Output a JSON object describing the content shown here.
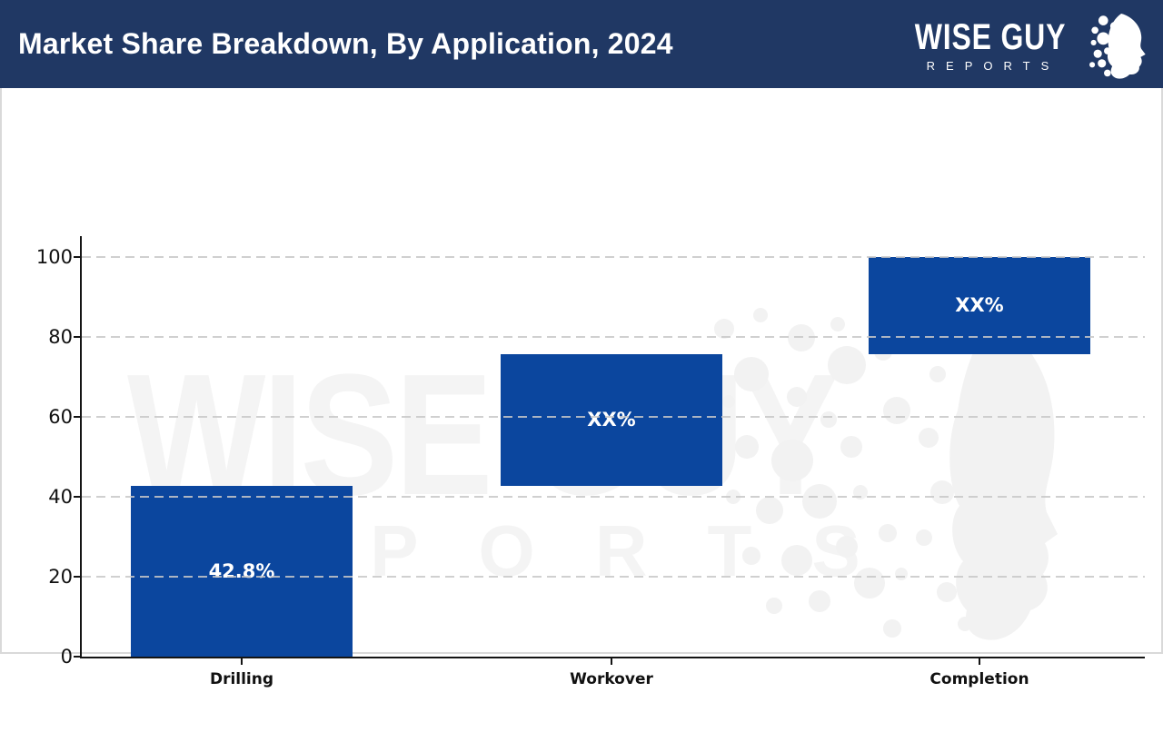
{
  "header": {
    "title": "Market Share Breakdown, By Application, 2024",
    "logo": {
      "wordmark": "WISE GUY",
      "subtext": "REPORTS"
    }
  },
  "watermark": {
    "wordmark": "WISE GUY",
    "subtext": "REPORTS"
  },
  "colors": {
    "header_bg": "#203864",
    "bar_blue": "#0b469e",
    "panel_border": "#d9d9d9",
    "watermark_gray": "#f4f4f4",
    "axis_black": "#141414"
  },
  "chart_data": {
    "type": "bar",
    "subtype": "floating-segment-waterfall",
    "title": "Market Share Breakdown, By Application, 2024",
    "categories": [
      "Drilling",
      "Workover",
      "Completion"
    ],
    "segments": [
      {
        "category": "Drilling",
        "start": 0,
        "end": 42.8,
        "label": "42.8%"
      },
      {
        "category": "Workover",
        "start": 42.8,
        "end": 75.7,
        "label": "XX%"
      },
      {
        "category": "Completion",
        "start": 75.7,
        "end": 100,
        "label": "XX%"
      }
    ],
    "xlabel": "",
    "ylabel": "",
    "ylim": [
      0,
      100
    ],
    "yticks": [
      0,
      20,
      40,
      60,
      80,
      100
    ],
    "grid": "horizontal-dashed",
    "legend": "none",
    "bar_color": "#0b469e",
    "bar_label_color": "#ffffff"
  }
}
